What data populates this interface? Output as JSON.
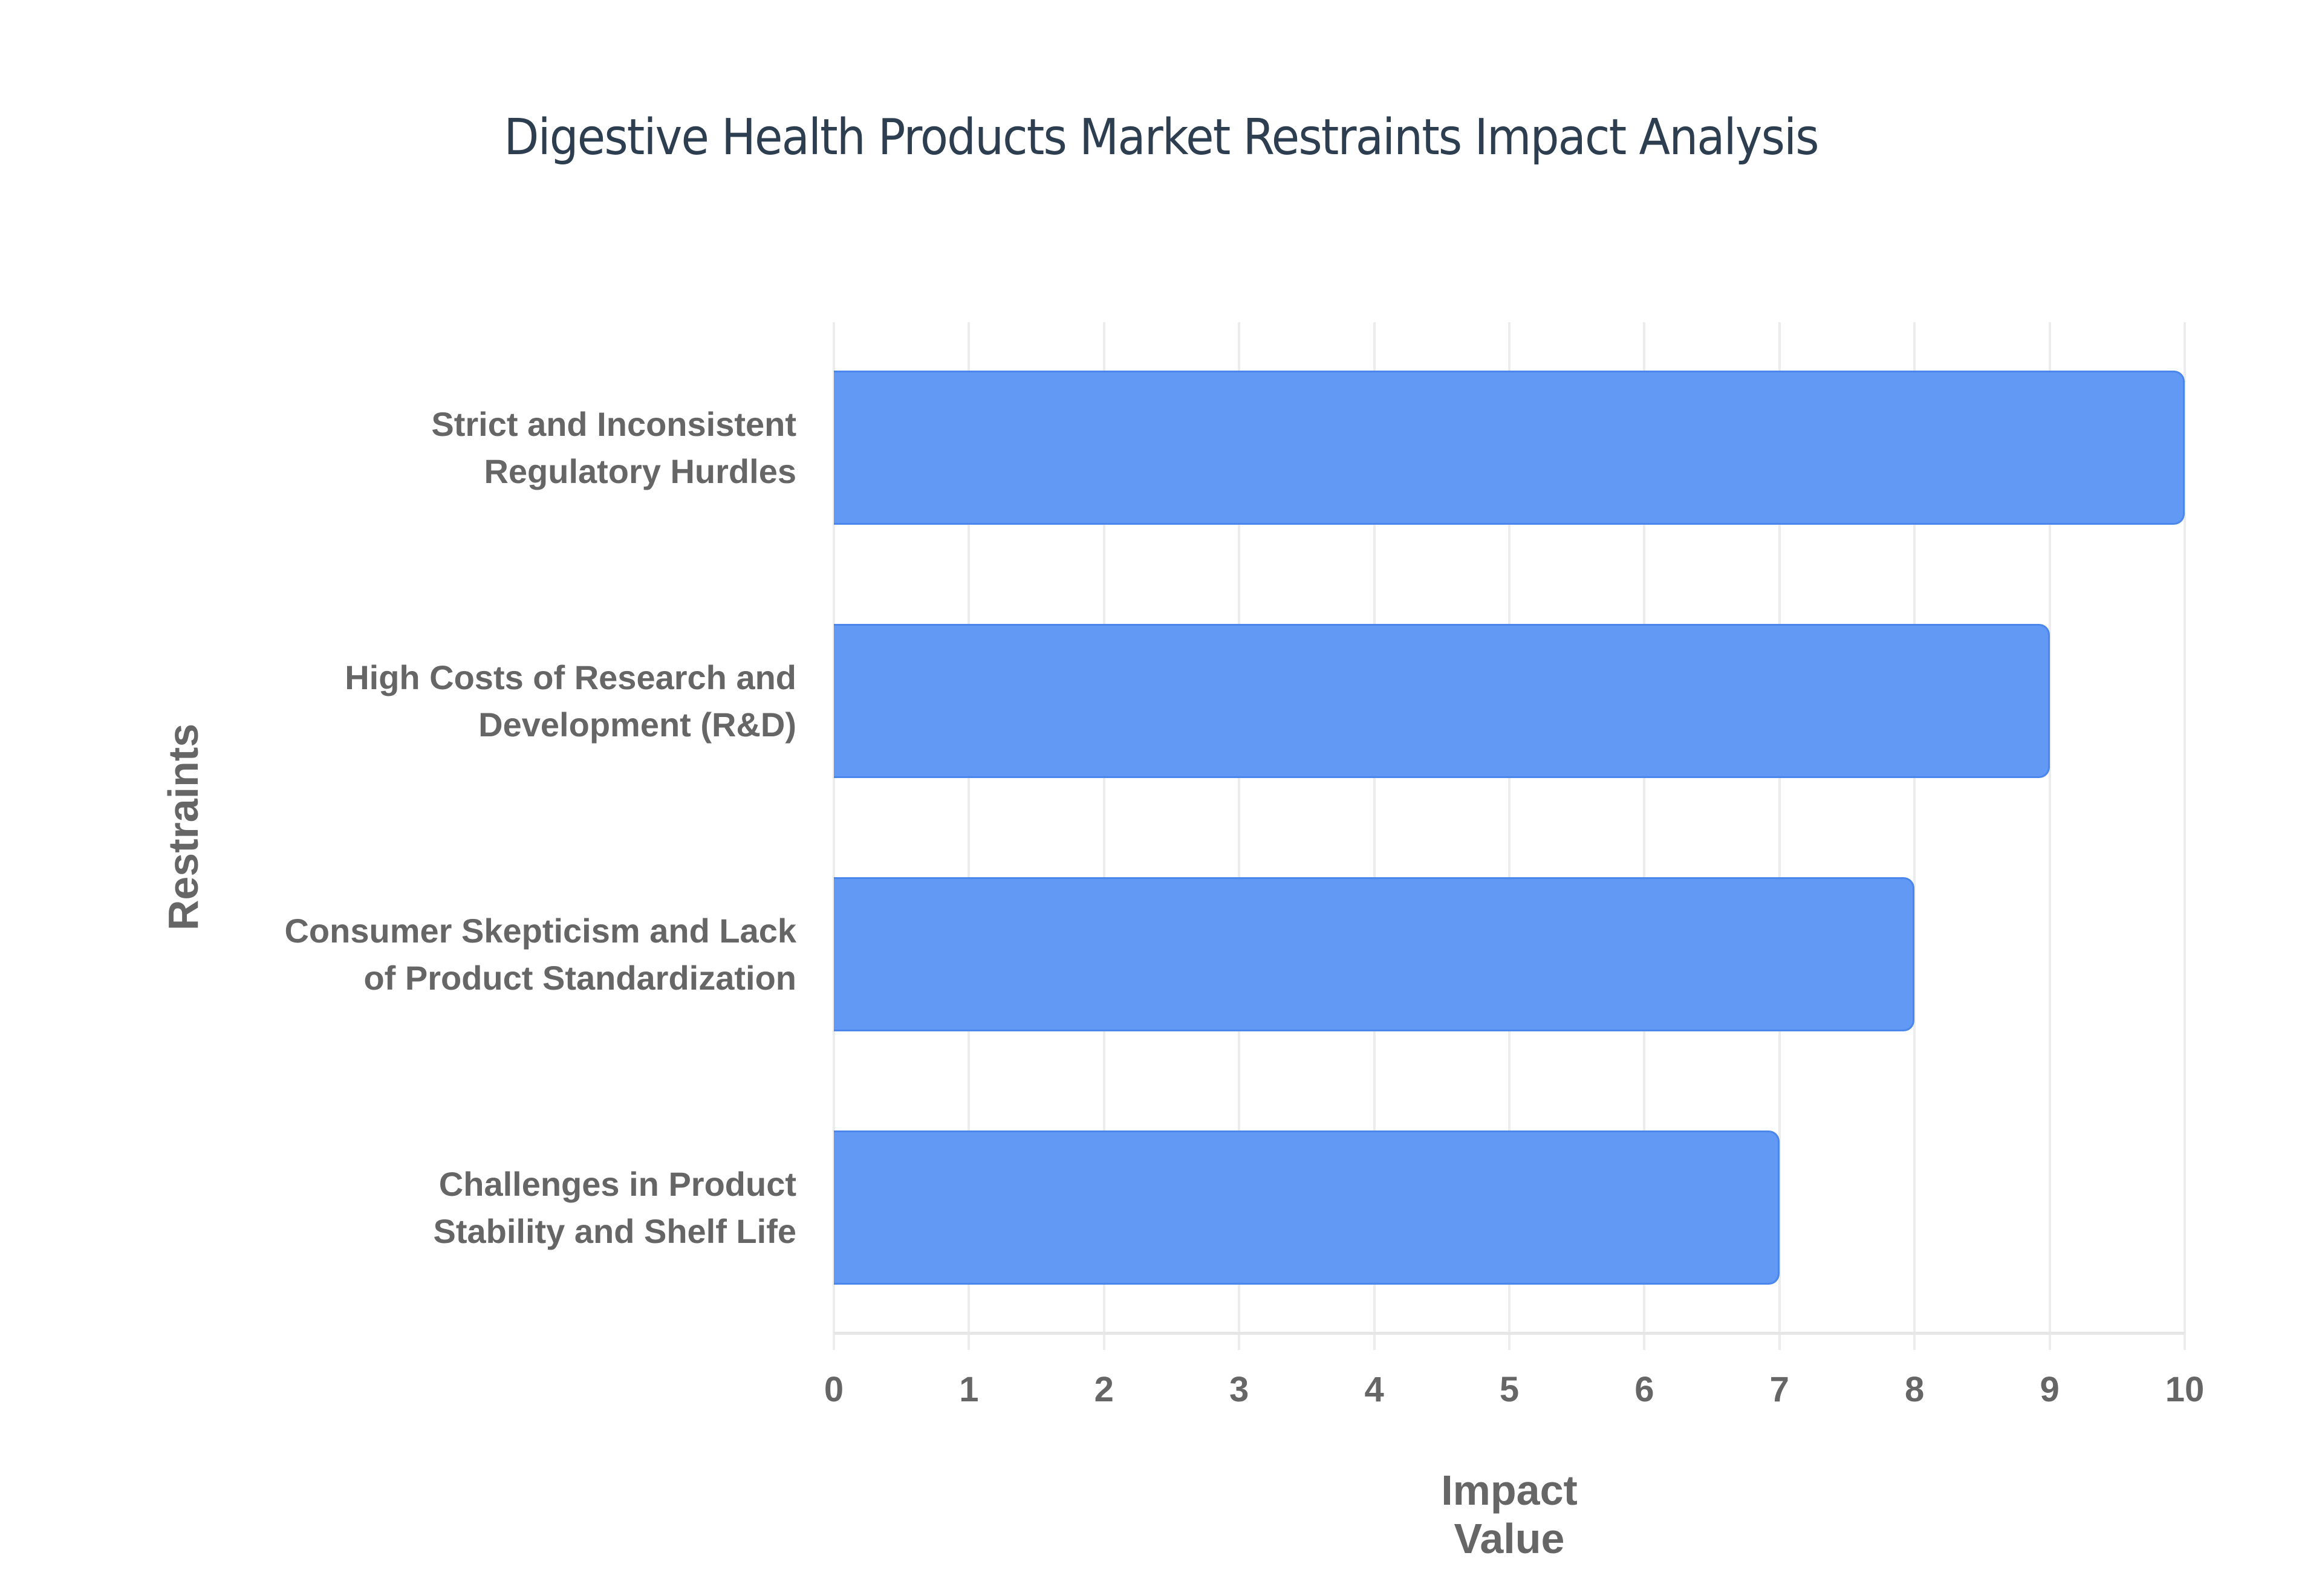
{
  "chart_data": {
    "type": "bar",
    "orientation": "horizontal",
    "title": "Digestive Health Products Market Restraints Impact Analysis",
    "xlabel": "Impact Value",
    "ylabel": "Restraints",
    "categories": [
      "Strict and Inconsistent Regulatory Hurdles",
      "High Costs of Research and Development (R&D)",
      "Consumer Skepticism and Lack of Product Standardization",
      "Challenges in Product Stability and Shelf Life"
    ],
    "category_lines": [
      [
        "Strict and Inconsistent",
        "Regulatory Hurdles"
      ],
      [
        "High Costs of Research and",
        "Development (R&D)"
      ],
      [
        "Consumer Skepticism and Lack",
        "of Product Standardization"
      ],
      [
        "Challenges in Product",
        "Stability and Shelf Life"
      ]
    ],
    "values": [
      10,
      9,
      8,
      7
    ],
    "xlim": [
      0,
      10
    ],
    "xticks": [
      "0",
      "1",
      "2",
      "3",
      "4",
      "5",
      "6",
      "7",
      "8",
      "9",
      "10"
    ],
    "grid": true,
    "legend": "none",
    "bar_color": "#6199f5",
    "bar_border_color": "#4a86ec"
  }
}
